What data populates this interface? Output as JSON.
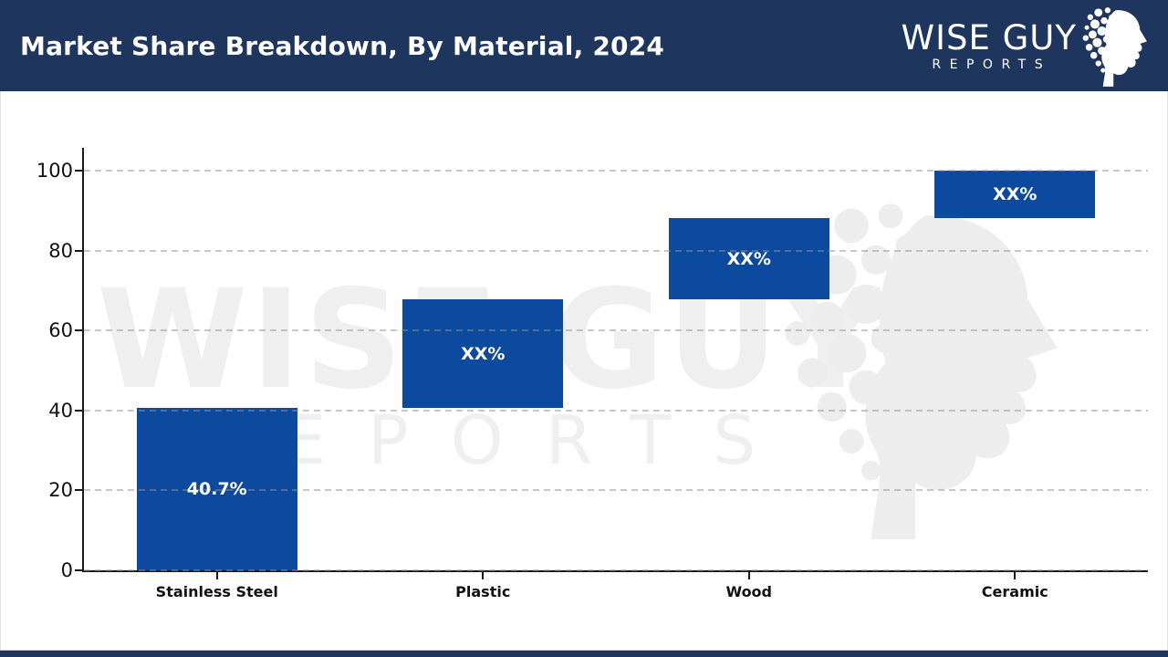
{
  "header": {
    "title": "Market Share Breakdown, By Material, 2024",
    "logo": {
      "line1": "WISE GUY",
      "line2": "REPORTS"
    }
  },
  "watermark": {
    "line1": "WISE GUY",
    "line2": "REPORTS"
  },
  "colors": {
    "header_bg": "#1e355e",
    "title_text": "#ffffff",
    "bar": "#0b4a9e",
    "bar_label": "#ffffff",
    "axis": "#1a1a1a",
    "grid": "#919191",
    "tick_label": "#111111",
    "watermark": "#efefef"
  },
  "chart_data": {
    "type": "bar",
    "subtype": "waterfall",
    "title": "Market Share Breakdown, By Material, 2024",
    "xlabel": "",
    "ylabel": "",
    "categories": [
      "Stainless Steel",
      "Plastic",
      "Wood",
      "Ceramic"
    ],
    "segments": [
      {
        "category": "Stainless Steel",
        "start": 0,
        "end": 40.7,
        "label": "40.7%"
      },
      {
        "category": "Plastic",
        "start": 40.7,
        "end": 67.7,
        "label": "XX%"
      },
      {
        "category": "Wood",
        "start": 67.7,
        "end": 88.2,
        "label": "XX%"
      },
      {
        "category": "Ceramic",
        "start": 88.2,
        "end": 100,
        "label": "XX%"
      }
    ],
    "yticks": [
      0,
      20,
      40,
      60,
      80,
      100
    ],
    "ylim": [
      0,
      105.7
    ],
    "grid": "horizontal dashed, drawn over bars",
    "legend": "none"
  }
}
